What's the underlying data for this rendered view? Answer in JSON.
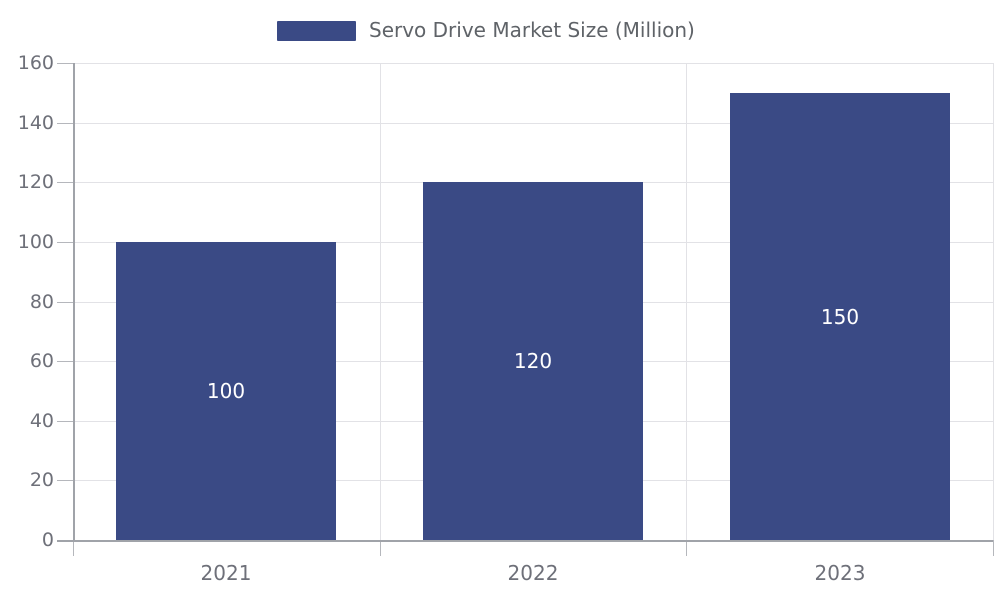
{
  "chart_data": {
    "type": "bar",
    "title": "",
    "legend": "Servo Drive Market Size (Million)",
    "categories": [
      "2021",
      "2022",
      "2023"
    ],
    "values": [
      100,
      120,
      150
    ],
    "value_labels": [
      "100",
      "120",
      "150"
    ],
    "ylabel": "",
    "xlabel": "",
    "ylim": [
      0,
      160
    ],
    "yticks": [
      0,
      20,
      40,
      60,
      80,
      100,
      120,
      140,
      160
    ],
    "grid": true,
    "legend_position": "top-center",
    "value_labels_inside_bars": true,
    "colors": {
      "bar": "#3A4A85",
      "bar_label": "#ffffff",
      "axis_label": "#6e7079",
      "legend_text": "#5f6368",
      "grid_line": "#e2e2e6",
      "axis_line": "#a0a3a9",
      "tick": "#b5b7bc",
      "background": "#ffffff"
    }
  }
}
